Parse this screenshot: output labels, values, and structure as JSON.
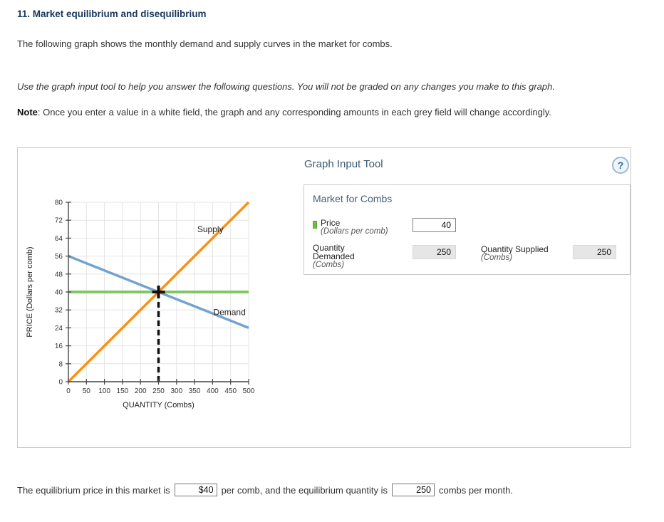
{
  "header": {
    "title": "11. Market equilibrium and disequilibrium",
    "intro": "The following graph shows the monthly demand and supply curves in the market for combs.",
    "instructions": "Use the graph input tool to help you answer the following questions. You will not be graded on any changes you make to this graph.",
    "note_label": "Note",
    "note_rest": ": Once you enter a value in a white field, the graph and any corresponding amounts in each grey field will change accordingly."
  },
  "chart_data": {
    "type": "line",
    "xlabel": "QUANTITY (Combs)",
    "ylabel": "PRICE (Dollars per comb)",
    "xlim": [
      0,
      500
    ],
    "ylim": [
      0,
      80
    ],
    "x_ticks": [
      0,
      50,
      100,
      150,
      200,
      250,
      300,
      350,
      400,
      450,
      500
    ],
    "y_ticks": [
      0,
      8,
      16,
      24,
      32,
      40,
      48,
      56,
      64,
      72,
      80
    ],
    "grid": true,
    "series": [
      {
        "name": "Supply",
        "color": "#FF8F0E",
        "points": [
          [
            0,
            0
          ],
          [
            500,
            80
          ]
        ],
        "label_pos": [
          430,
          68
        ],
        "label_anchor": "end"
      },
      {
        "name": "Demand",
        "color": "#74A3CE",
        "points": [
          [
            0,
            56
          ],
          [
            500,
            24
          ]
        ],
        "label_pos": [
          402,
          31
        ],
        "label_anchor": "start"
      }
    ],
    "price_line": {
      "value": 40,
      "color": "#82C564"
    },
    "equilibrium": {
      "quantity": 250,
      "price": 40,
      "marker_color": "#111111"
    }
  },
  "input_tool": {
    "title": "Graph Input Tool",
    "help_icon": "?",
    "panel_title": "Market for Combs",
    "price_label": "Price",
    "price_sublabel": "(Dollars per comb)",
    "price_value": "40",
    "qty_demanded_label": "Quantity Demanded",
    "qty_demanded_sublabel": "(Combs)",
    "qty_demanded_value": "250",
    "qty_supplied_label": "Quantity Supplied",
    "qty_supplied_sublabel": "(Combs)",
    "qty_supplied_value": "250"
  },
  "answer": {
    "text_before_price": "The equilibrium price in this market is",
    "price_value": "$40",
    "text_between": "per comb, and the equilibrium quantity is",
    "quantity_value": "250",
    "text_after": "combs per month."
  }
}
